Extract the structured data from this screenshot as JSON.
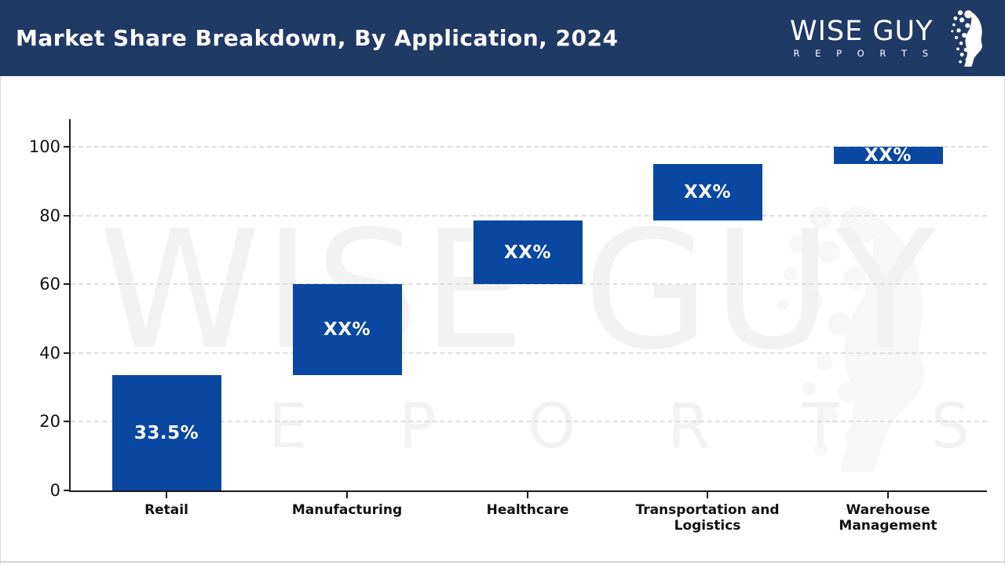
{
  "header": {
    "title": "Market Share Breakdown, By Application, 2024",
    "logo": {
      "name": "WISE GUY",
      "sub": "R E P O R T S",
      "head_icon": "dotted-head-profile-icon"
    }
  },
  "watermark": {
    "line1": "WISE GUY",
    "line2": "R E P O R T S",
    "head_icon": "dotted-head-profile-watermark"
  },
  "colors": {
    "header_bg": "#203a66",
    "bar": "#0a47a0",
    "bar_label": "#ffffff",
    "grid": "#dedede",
    "axis": "#1a1a1a",
    "watermark": "#f2f2f2"
  },
  "chart_data": {
    "type": "bar",
    "subtype": "waterfall",
    "title": "Market Share Breakdown, By Application, 2024",
    "xlabel": "",
    "ylabel": "",
    "ylim": [
      0,
      100
    ],
    "yticks": [
      0,
      20,
      40,
      60,
      80,
      100
    ],
    "grid": "horizontal dashed",
    "legend": "none",
    "categories": [
      "Retail",
      "Manufacturing",
      "Healthcare",
      "Transportation and Logistics",
      "Warehouse Management"
    ],
    "segments": [
      {
        "category": "Retail",
        "lines": [
          "Retail"
        ],
        "start": 0,
        "end": 33.5,
        "label": "33.5%"
      },
      {
        "category": "Manufacturing",
        "lines": [
          "Manufacturing"
        ],
        "start": 33.5,
        "end": 60,
        "label": "XX%"
      },
      {
        "category": "Healthcare",
        "lines": [
          "Healthcare"
        ],
        "start": 60,
        "end": 78.5,
        "label": "XX%"
      },
      {
        "category": "Transportation and Logistics",
        "lines": [
          "Transportation and",
          "Logistics"
        ],
        "start": 78.5,
        "end": 95,
        "label": "XX%"
      },
      {
        "category": "Warehouse Management",
        "lines": [
          "Warehouse",
          "Management"
        ],
        "start": 95,
        "end": 100,
        "label": "XX%"
      }
    ]
  }
}
